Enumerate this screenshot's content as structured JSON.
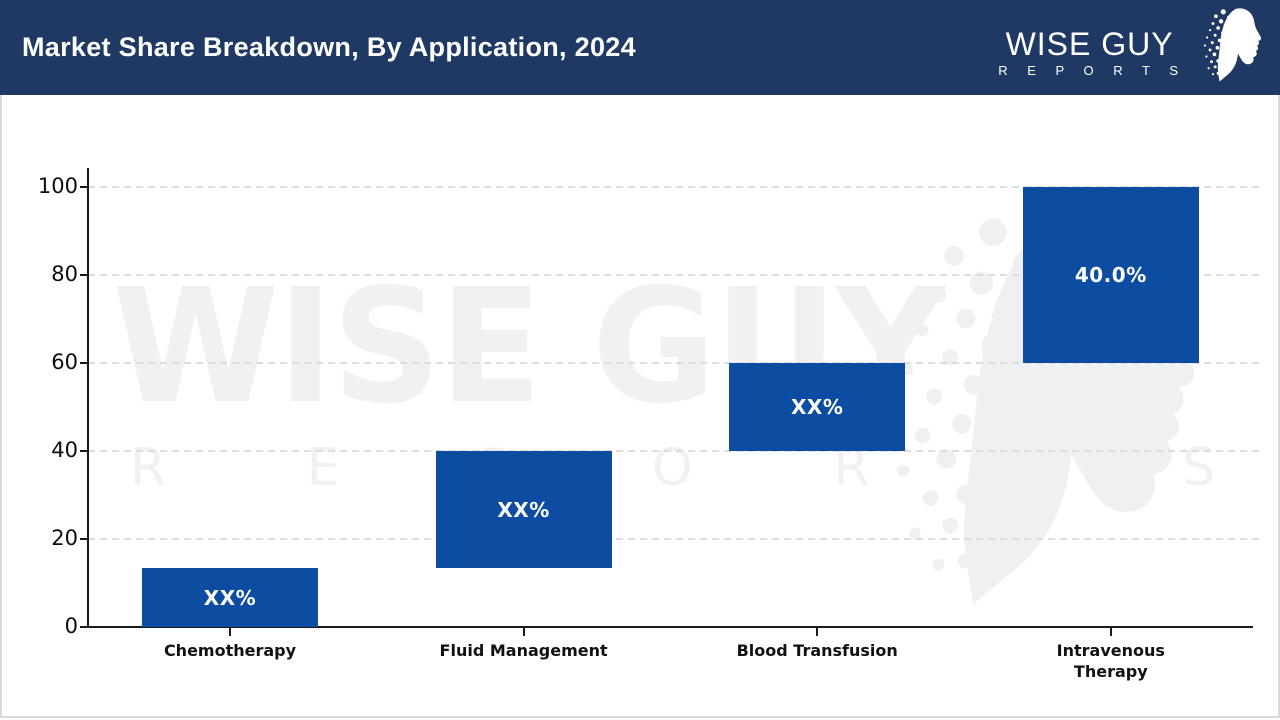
{
  "header": {
    "title": "Market Share Breakdown, By Application, 2024",
    "bg_color": "#1F3864",
    "logo": {
      "line1": "WISE GUY",
      "line2": "R E P O R T S"
    }
  },
  "watermark": {
    "line1": "WISE GUY",
    "line2": "R E P O R T S"
  },
  "chart_data": {
    "type": "bar",
    "subtype": "waterfall",
    "title": "Market Share Breakdown, By Application, 2024",
    "categories": [
      "Chemotherapy",
      "Fluid Management",
      "Blood Transfusion",
      "Intravenous Therapy"
    ],
    "category_label_lines": [
      [
        "Chemotherapy"
      ],
      [
        "Fluid Management"
      ],
      [
        "Blood Transfusion"
      ],
      [
        "Intravenous",
        "Therapy"
      ]
    ],
    "segments": [
      {
        "category": "Chemotherapy",
        "start": 0,
        "end": 13.4,
        "label": "XX%"
      },
      {
        "category": "Fluid Management",
        "start": 13.4,
        "end": 40,
        "label": "XX%"
      },
      {
        "category": "Blood Transfusion",
        "start": 40,
        "end": 60,
        "label": "XX%"
      },
      {
        "category": "Intravenous Therapy",
        "start": 60,
        "end": 100,
        "label": "40.0%"
      }
    ],
    "y_ticks": [
      0,
      20,
      40,
      60,
      80,
      100
    ],
    "ylim": [
      0,
      105
    ],
    "xlabel": "",
    "ylabel": "",
    "grid": "horizontal-dashed",
    "legend": "none",
    "bar_color": "#0D4DA1",
    "axis_color": "#1a1a1a",
    "gridline_color": "#dcdcdc",
    "bar_label_color": "#ffffff"
  }
}
